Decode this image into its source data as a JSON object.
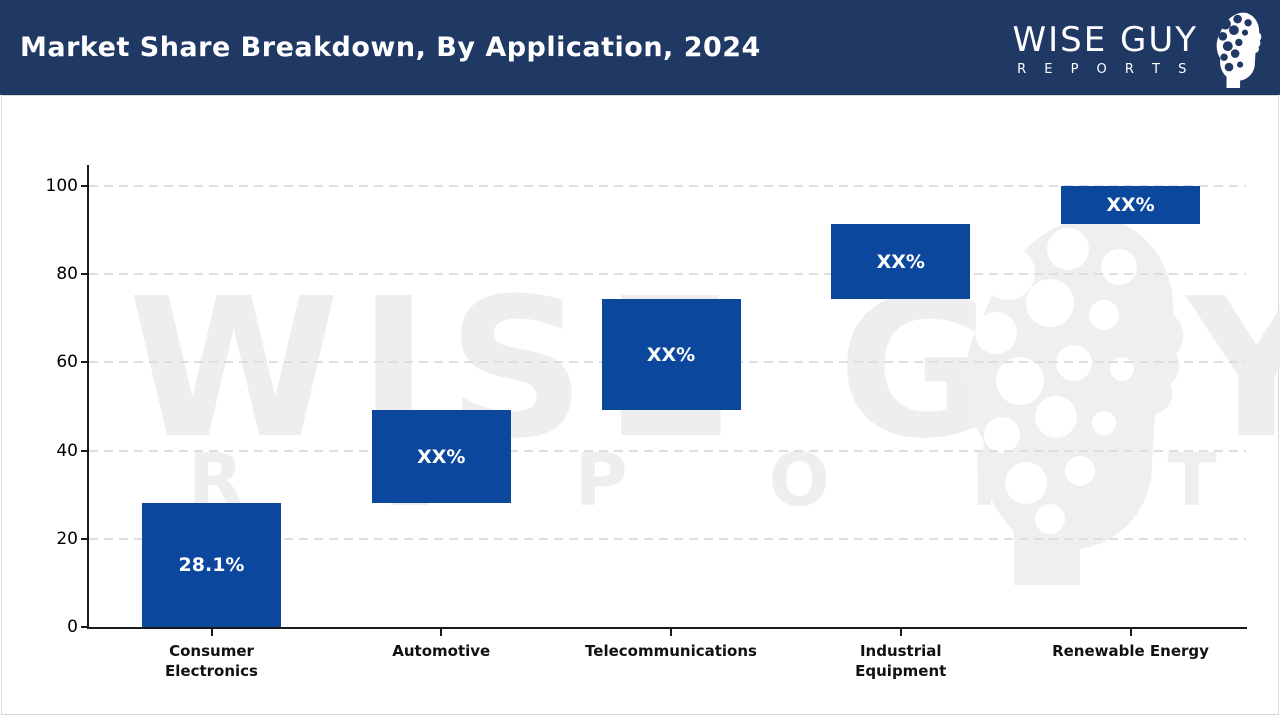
{
  "header": {
    "title": "Market Share Breakdown, By Application, 2024",
    "bg_color": "#1f3864",
    "logo": {
      "line1": "WISE GUY",
      "line2": "R E P O R T S"
    }
  },
  "watermark": {
    "line1": "WISE GUY",
    "line2": "R E P O R T S"
  },
  "chart_data": {
    "type": "bar",
    "subtype": "waterfall",
    "title": "Market Share Breakdown, By Application, 2024",
    "categories": [
      "Consumer Electronics",
      "Automotive",
      "Telecommunications",
      "Industrial Equipment",
      "Renewable Energy"
    ],
    "categories_display": [
      "Consumer\nElectronics",
      "Automotive",
      "Telecommunications",
      "Industrial\nEquipment",
      "Renewable Energy"
    ],
    "segments": [
      {
        "category": "Consumer Electronics",
        "start": 0,
        "end": 28.1,
        "label": "28.1%"
      },
      {
        "category": "Automotive",
        "start": 28.1,
        "end": 49.2,
        "label": "XX%"
      },
      {
        "category": "Telecommunications",
        "start": 49.2,
        "end": 74.3,
        "label": "XX%"
      },
      {
        "category": "Industrial Equipment",
        "start": 74.3,
        "end": 91.3,
        "label": "XX%"
      },
      {
        "category": "Renewable Energy",
        "start": 91.3,
        "end": 100,
        "label": "XX%"
      }
    ],
    "values_sum": 100,
    "y_ticks": [
      0,
      20,
      40,
      60,
      80,
      100
    ],
    "ylim": [
      0,
      105
    ],
    "xlabel": "",
    "ylabel": "",
    "grid": true,
    "grid_style": "dashed",
    "legend": null,
    "bar_color": "#0b479d",
    "label_color": "#ffffff",
    "axis_color": "#1a1a1a",
    "grid_color": "#dedede"
  }
}
